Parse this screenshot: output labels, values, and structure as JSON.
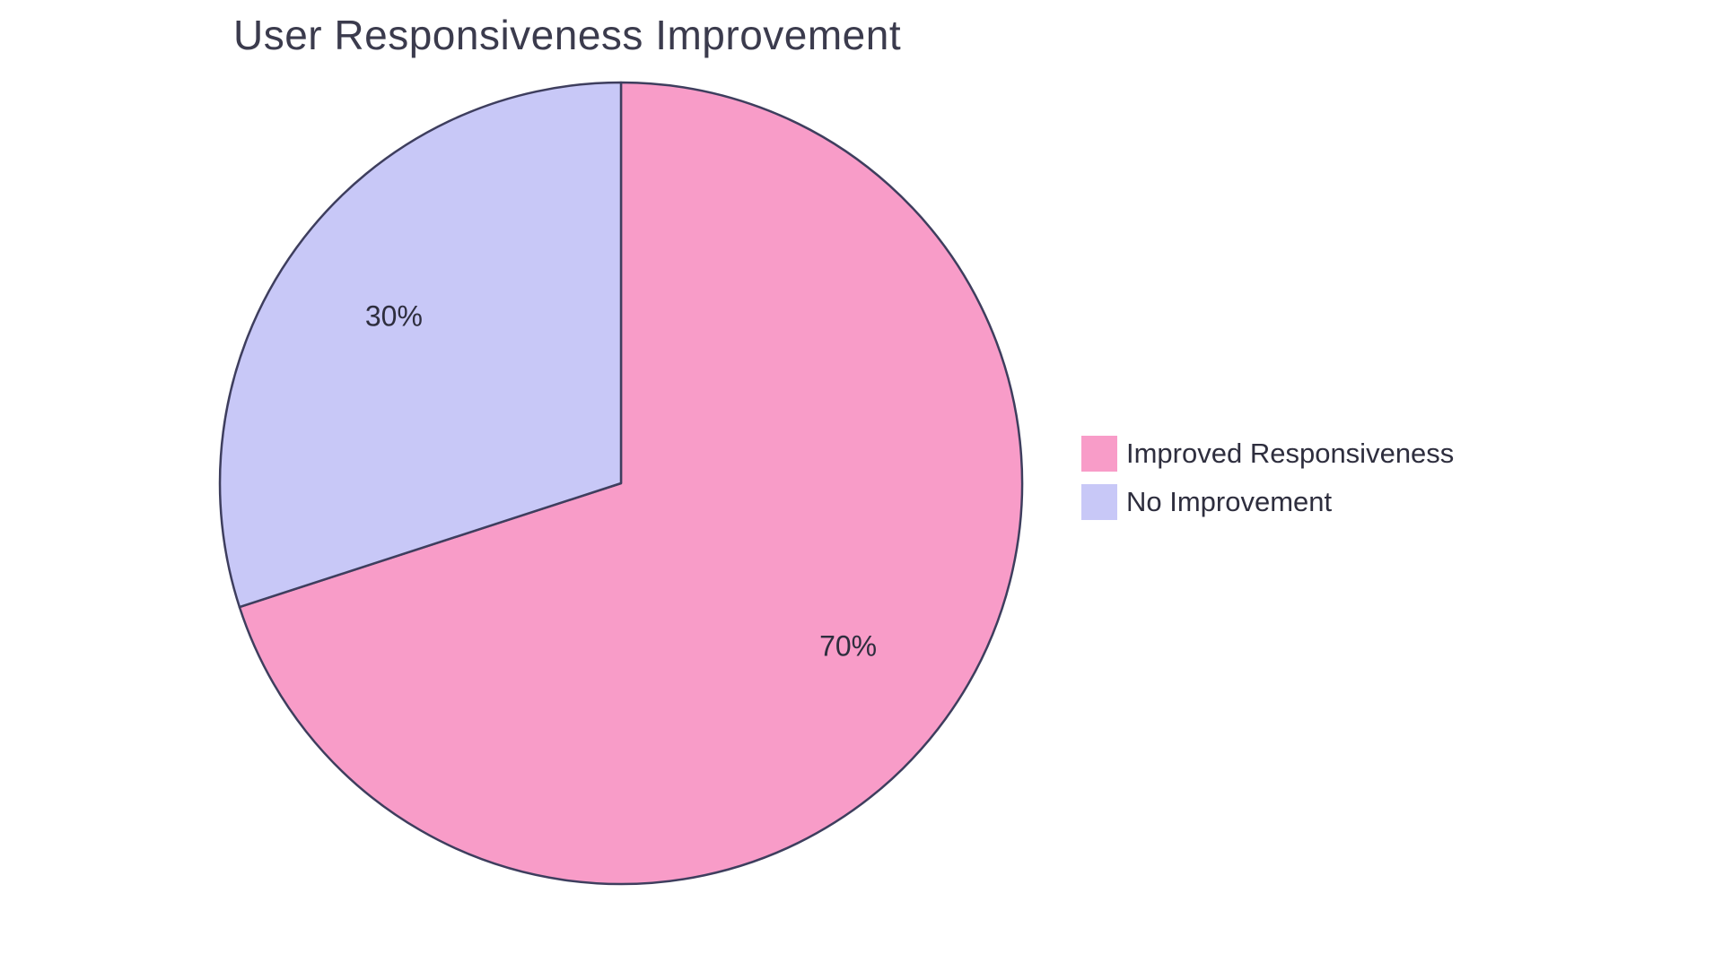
{
  "chart_data": {
    "type": "pie",
    "title": "User Responsiveness Improvement",
    "labels": [
      "Improved Responsiveness",
      "No Improvement"
    ],
    "values": [
      70,
      30
    ],
    "percent_labels": [
      "70%",
      "30%"
    ],
    "colors": [
      "#F89CC8",
      "#C8C8F7"
    ],
    "stroke_color": "#3E3E5E",
    "text_color": "#2E2E3E",
    "title_color": "#3B3B4D",
    "start_angle_deg": 0,
    "direction": "clockwise",
    "legend_position": "right"
  }
}
